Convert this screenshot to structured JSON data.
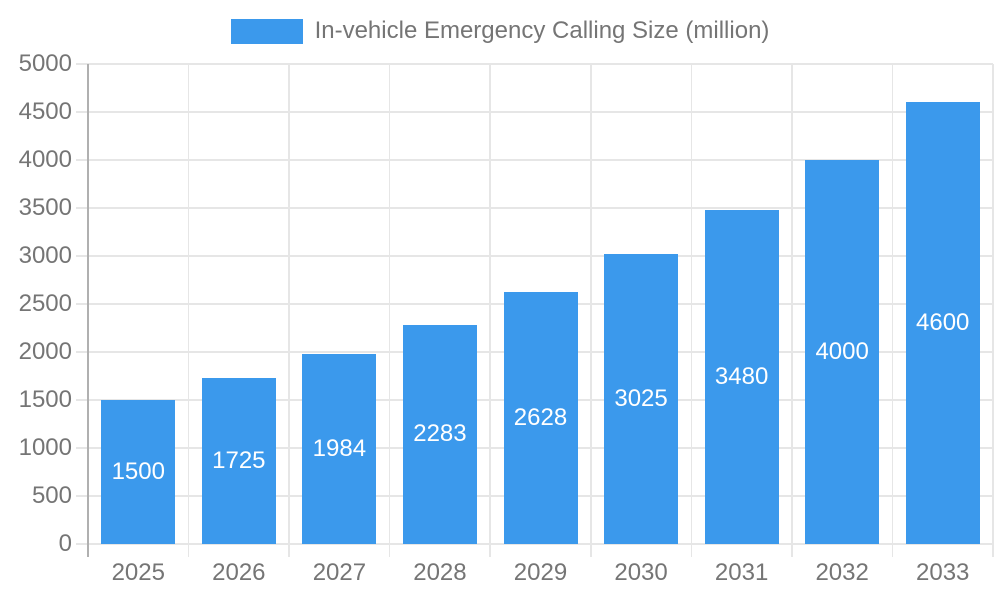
{
  "chart_data": {
    "type": "bar",
    "title": "",
    "legend": "In-vehicle Emergency Calling Size (million)",
    "legend_position": "top-center",
    "categories": [
      "2025",
      "2026",
      "2027",
      "2028",
      "2029",
      "2030",
      "2031",
      "2032",
      "2033"
    ],
    "series": [
      {
        "name": "In-vehicle Emergency Calling Size (million)",
        "values": [
          1500,
          1725,
          1984,
          2283,
          2628,
          3025,
          3480,
          4000,
          4600
        ]
      }
    ],
    "value_labels_position": "inside-center",
    "xlabel": "",
    "ylabel": "",
    "ylim": [
      0,
      5000
    ],
    "ytick_step": 500,
    "grid": true,
    "colors": {
      "bar": "#3b99ec",
      "tick_text": "#757575",
      "legend_text": "#757575",
      "value_text": "#ffffff",
      "gridline": "#e6e6e6",
      "axis_line": "#b0b0b0",
      "background": "#ffffff"
    }
  }
}
